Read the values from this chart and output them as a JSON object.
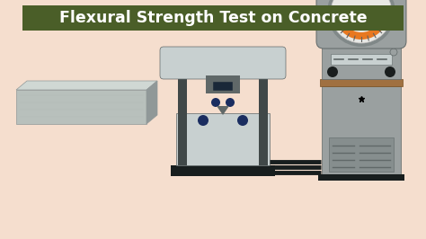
{
  "bg_color": "#f5dece",
  "title_text": "Flexural Strength Test on Concrete",
  "title_bg": "#4a5e28",
  "title_fg": "#ffffff",
  "title_fontsize": 12.5,
  "machine_gray": "#9aa0a0",
  "machine_dark": "#606868",
  "machine_light": "#c8d0d0",
  "machine_black": "#181e1e",
  "gauge_bg": "#dcdcdc",
  "gauge_orange": "#e87820",
  "blue_btn": "#1a2d60",
  "wood_color": "#a07040",
  "vent_gray": "#868e8e",
  "col_dark": "#404848"
}
